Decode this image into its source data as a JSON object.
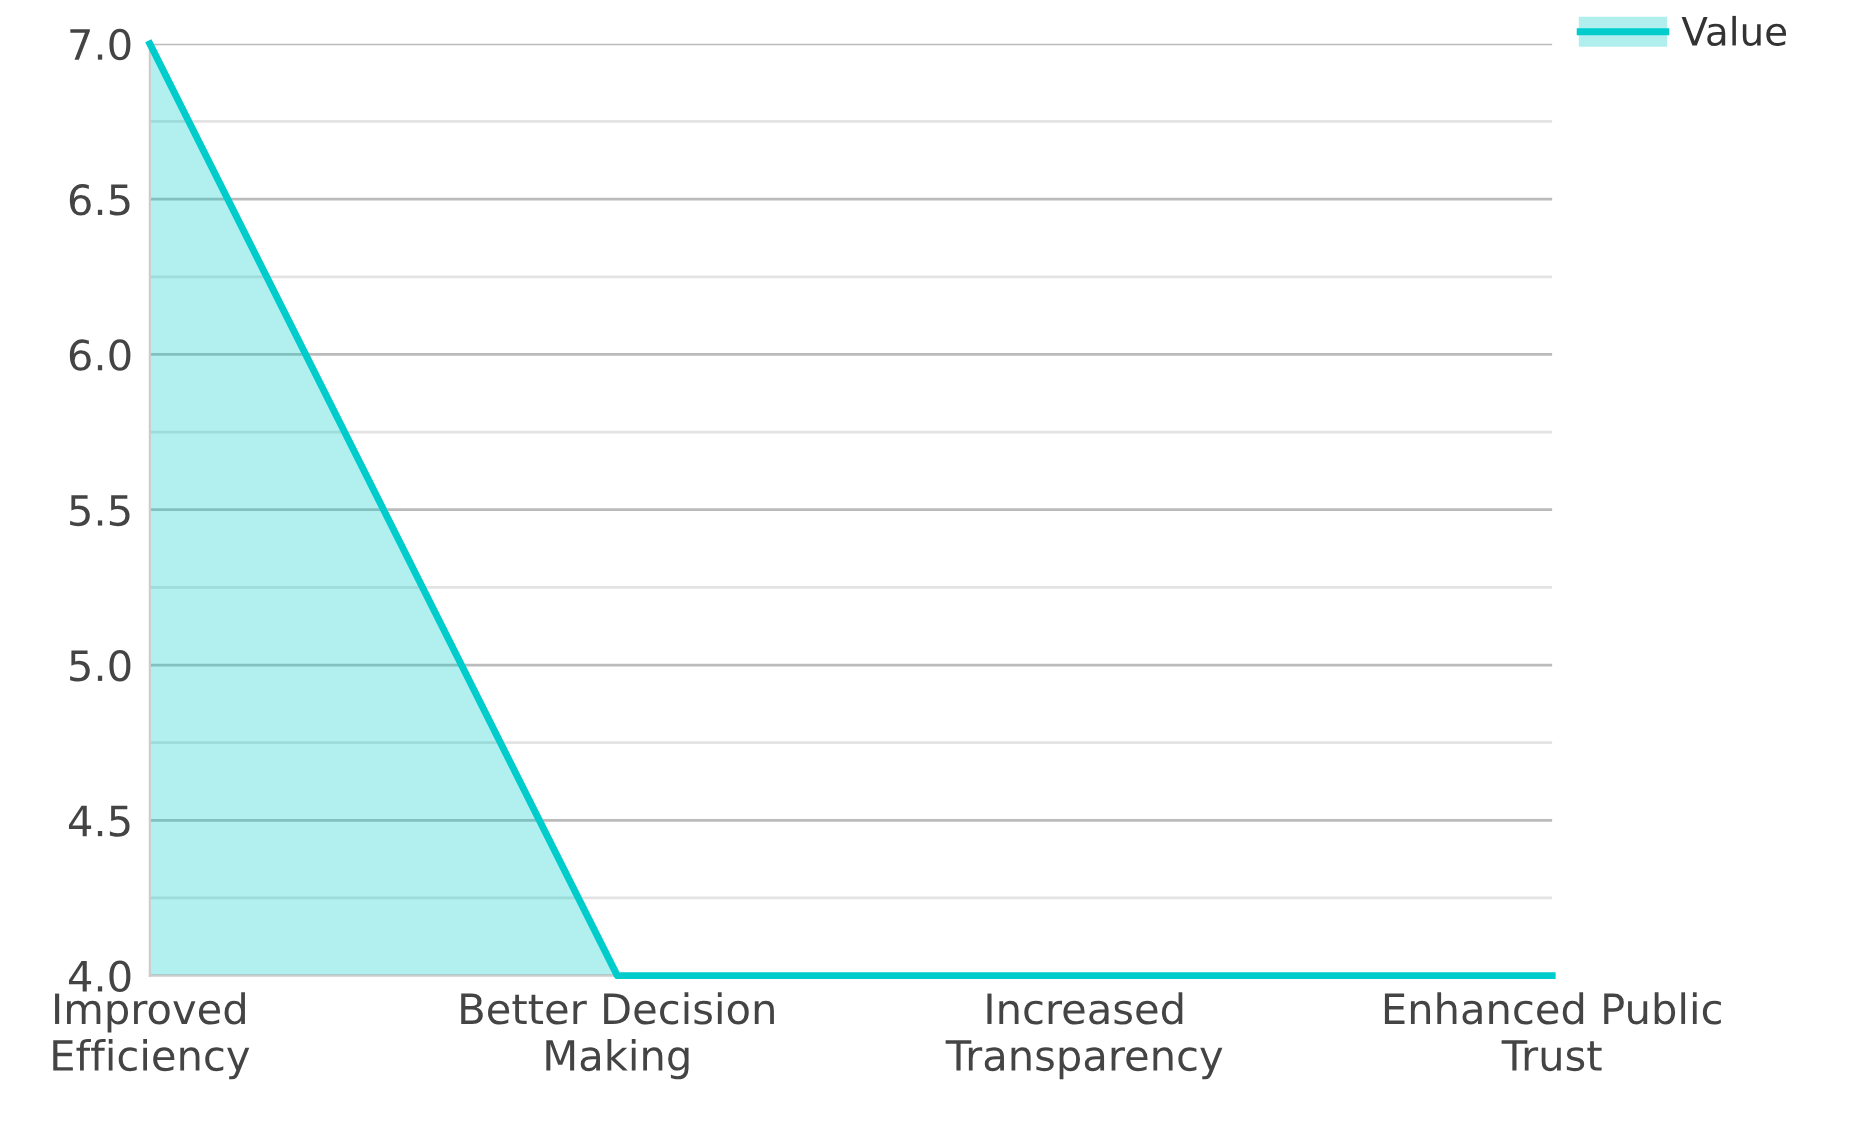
{
  "chart_data": {
    "type": "area",
    "categories": [
      "Improved\nEfficiency",
      "Better Decision\nMaking",
      "Increased\nTransparency",
      "Enhanced Public\nTrust"
    ],
    "series": [
      {
        "name": "Value",
        "color": "#00cccc",
        "values": [
          7,
          4,
          4,
          4
        ]
      }
    ],
    "ylim": [
      4,
      7
    ],
    "yticks": [
      {
        "value": 4,
        "label": "4.0"
      },
      {
        "value": 4.25,
        "label": null
      },
      {
        "value": 4.5,
        "label": "4.5"
      },
      {
        "value": 4.75,
        "label": null
      },
      {
        "value": 5,
        "label": "5.0"
      },
      {
        "value": 5.25,
        "label": null
      },
      {
        "value": 5.5,
        "label": "5.5"
      },
      {
        "value": 5.75,
        "label": null
      },
      {
        "value": 6,
        "label": "6.0"
      },
      {
        "value": 6.25,
        "label": null
      },
      {
        "value": 6.5,
        "label": "6.5"
      },
      {
        "value": 6.75,
        "label": null
      },
      {
        "value": 7,
        "label": "7.0"
      }
    ],
    "grid": "y",
    "legend": "top right",
    "marker": "none",
    "line_style": "solid"
  }
}
